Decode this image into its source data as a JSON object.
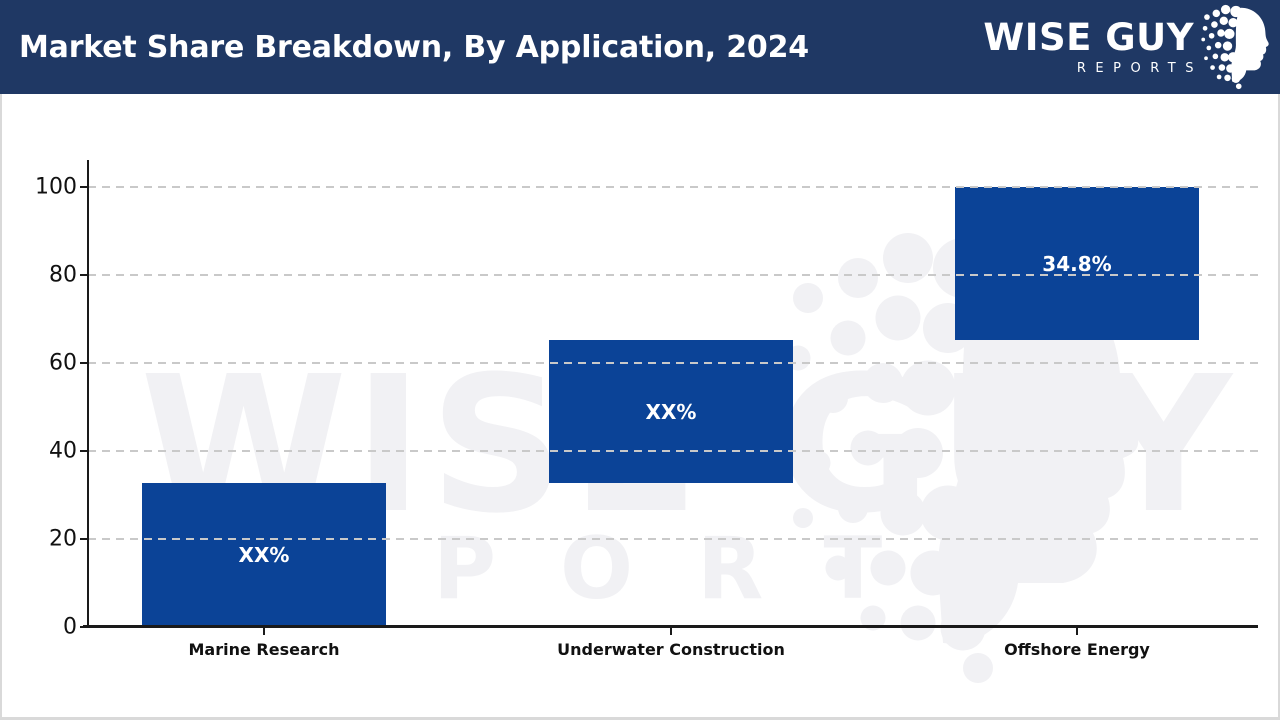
{
  "header": {
    "title": "Market Share Breakdown, By Application, 2024",
    "logo": {
      "wordmark": "WISE GUY",
      "subtext": "REPORTS"
    }
  },
  "watermark": {
    "line1": "WISE GUY",
    "line2": "REPORTS"
  },
  "colors": {
    "header_bg": "#1f3864",
    "bar": "#0b4397",
    "grid": "#c9c9c9",
    "axis": "#1a1a1a",
    "watermark": "#f1f1f4",
    "bar_label": "#ffffff"
  },
  "chart_data": {
    "type": "bar",
    "subtype": "waterfall",
    "title": "Market Share Breakdown, By Application, 2024",
    "xlabel": "",
    "ylabel": "",
    "categories": [
      "Marine Research",
      "Underwater Construction",
      "Offshore Energy"
    ],
    "bars": [
      {
        "category": "Marine Research",
        "start": 0,
        "end": 32.7,
        "label": "XX%"
      },
      {
        "category": "Underwater Construction",
        "start": 32.7,
        "end": 65.2,
        "label": "XX%"
      },
      {
        "category": "Offshore Energy",
        "start": 65.2,
        "end": 100,
        "label": "34.8%"
      }
    ],
    "yticks": [
      0,
      20,
      40,
      60,
      80,
      100
    ],
    "ylim": [
      0,
      106
    ],
    "grid": "horizontal-dashed-over-bars",
    "legend": "none"
  }
}
